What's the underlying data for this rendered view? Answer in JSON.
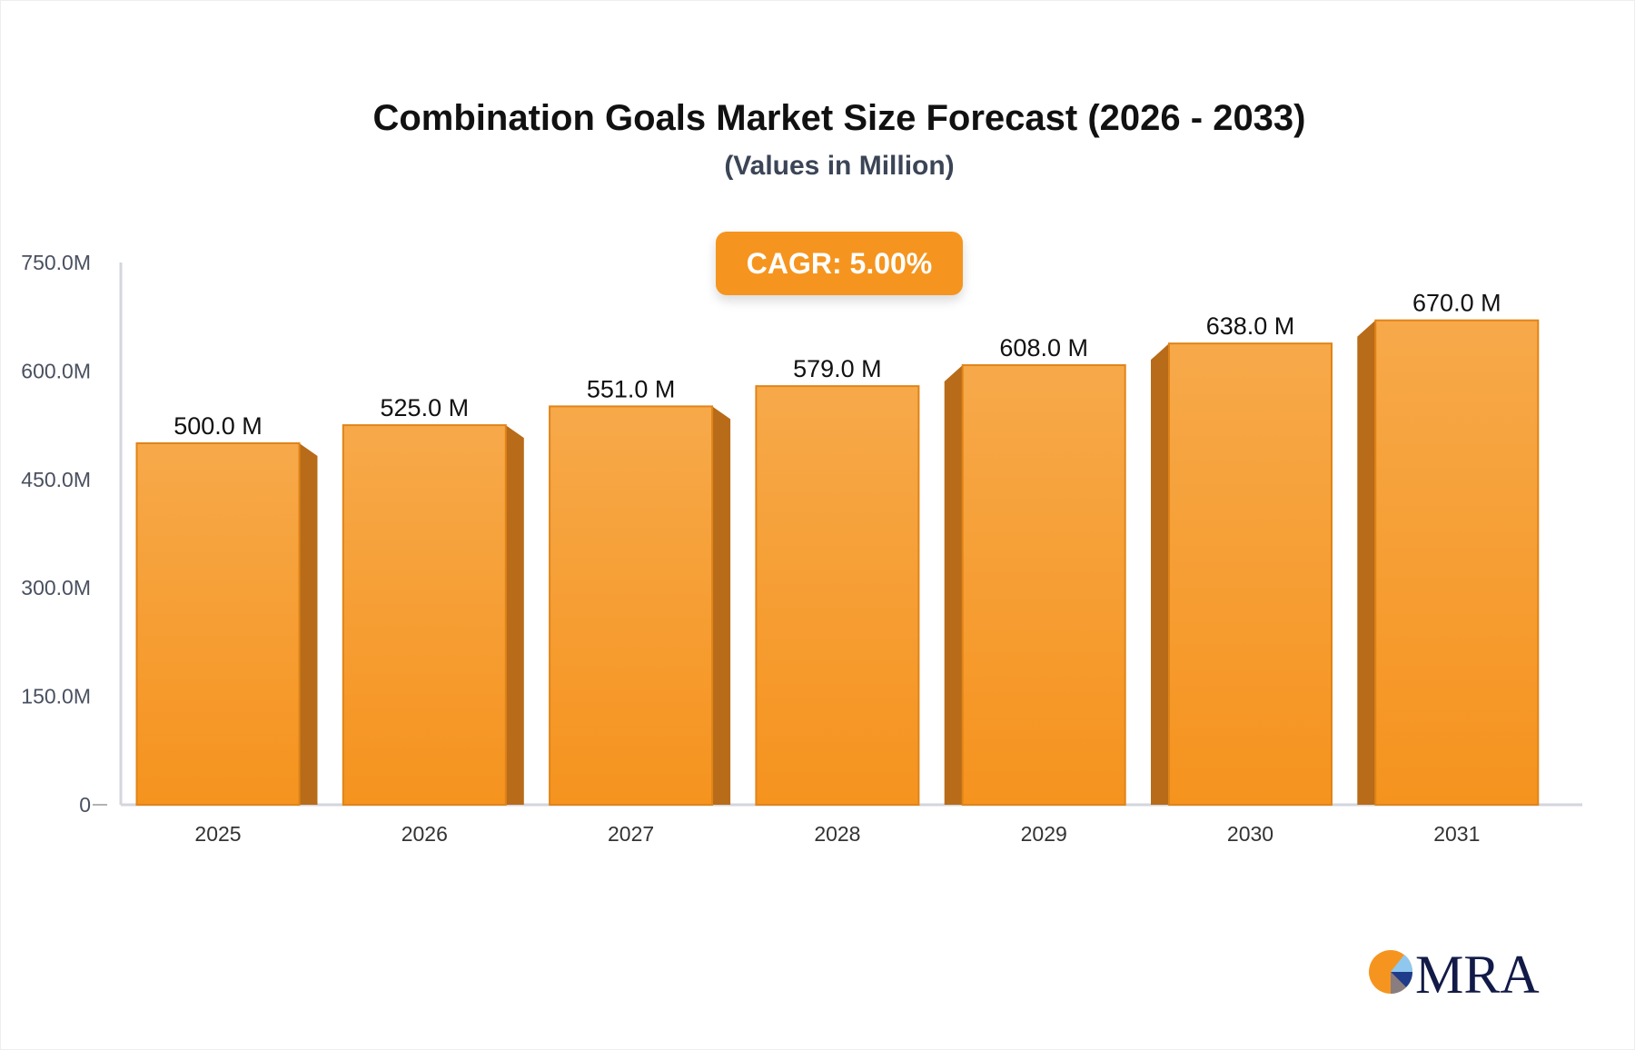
{
  "chart_data": {
    "type": "bar",
    "title": "Combination Goals Market Size Forecast (2026 - 2033)",
    "subtitle": "(Values in Million)",
    "categories": [
      "2025",
      "2026",
      "2027",
      "2028",
      "2029",
      "2030",
      "2031"
    ],
    "values": [
      500.0,
      525.0,
      551.0,
      579.0,
      608.0,
      638.0,
      670.0
    ],
    "data_labels": [
      "500.0 M",
      "525.0 M",
      "551.0 M",
      "579.0 M",
      "608.0 M",
      "638.0 M",
      "670.0 M"
    ],
    "yticks": [
      0,
      150,
      300,
      450,
      600,
      750
    ],
    "ytick_labels": [
      "0",
      "150.0M",
      "300.0M",
      "450.0M",
      "600.0M",
      "750.0M"
    ],
    "ylim": [
      0,
      750
    ],
    "xlabel": "",
    "ylabel": "",
    "grid": false,
    "annotation": "CAGR: 5.00%",
    "colors": {
      "bar": "#f5951f",
      "bar_top": "#f7a94a",
      "bar_side": "#b86b18",
      "axis": "#d3d6dd"
    }
  },
  "logo": {
    "text": "MRA"
  }
}
